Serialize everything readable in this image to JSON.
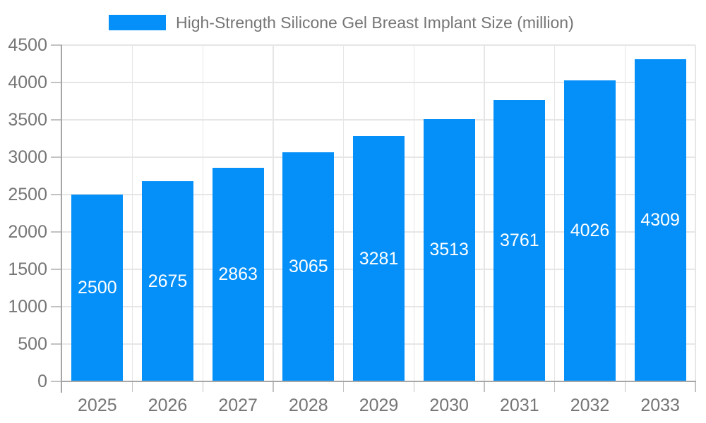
{
  "chart_data": {
    "type": "bar",
    "title": "High-Strength Silicone Gel Breast Implant Size (million)",
    "categories": [
      "2025",
      "2026",
      "2027",
      "2028",
      "2029",
      "2030",
      "2031",
      "2032",
      "2033"
    ],
    "values": [
      2500,
      2675,
      2863,
      3065,
      3281,
      3513,
      3761,
      4026,
      4309
    ],
    "value_labels": [
      "2500",
      "2675",
      "2863",
      "3065",
      "3281",
      "3513",
      "3761",
      "4026",
      "4309"
    ],
    "xlabel": "",
    "ylabel": "",
    "ylim": [
      0,
      4500
    ],
    "ytick_step": 500,
    "ytick_labels": [
      "0",
      "500",
      "1000",
      "1500",
      "2000",
      "2500",
      "3000",
      "3500",
      "4000",
      "4500"
    ],
    "legend_position": "top-center",
    "grid": {
      "horizontal": true,
      "vertical": true
    },
    "colors": {
      "bar": "#0590f9",
      "bar_label": "#ffffff",
      "axis_text": "#757575",
      "gridline": "#e6e6e6",
      "axis_line": "#a6a6a6",
      "tick": "#c2c2c2",
      "background": "#ffffff"
    }
  }
}
